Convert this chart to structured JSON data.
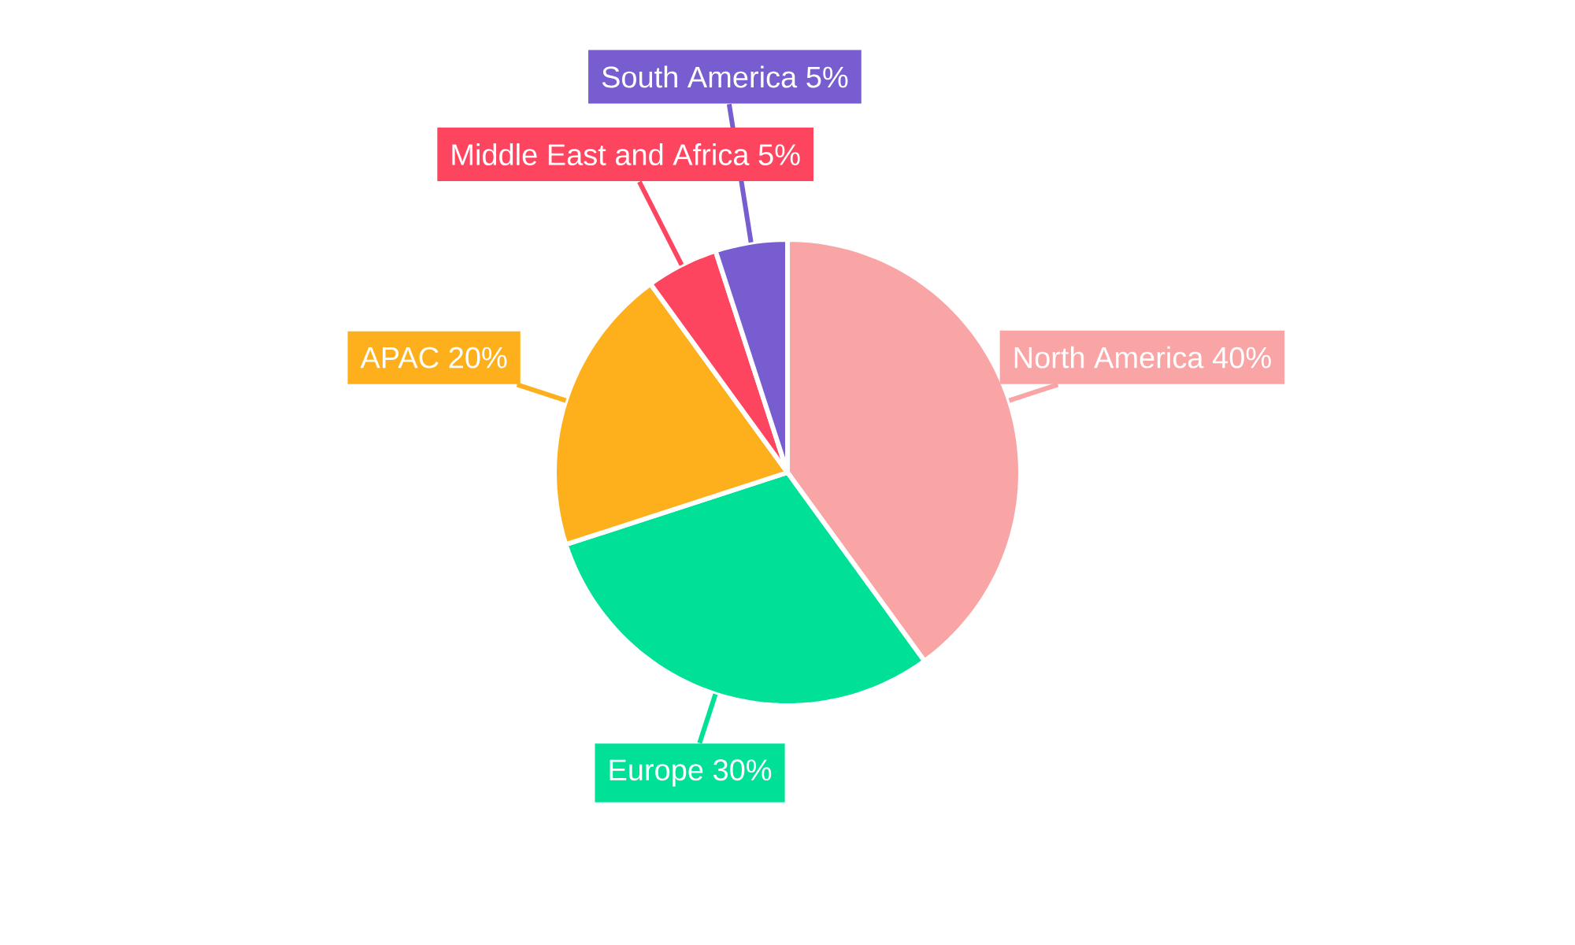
{
  "chart_data": {
    "type": "pie",
    "categories": [
      "North America",
      "Europe",
      "APAC",
      "Middle East and Africa",
      "South America"
    ],
    "values": [
      40,
      30,
      20,
      5,
      5
    ],
    "value_labels": [
      "40%",
      "30%",
      "20%",
      "5%",
      "5%"
    ],
    "colors": [
      "#f9a5a5",
      "#00e096",
      "#fdb01b",
      "#fe4560",
      "#775dd0"
    ]
  }
}
